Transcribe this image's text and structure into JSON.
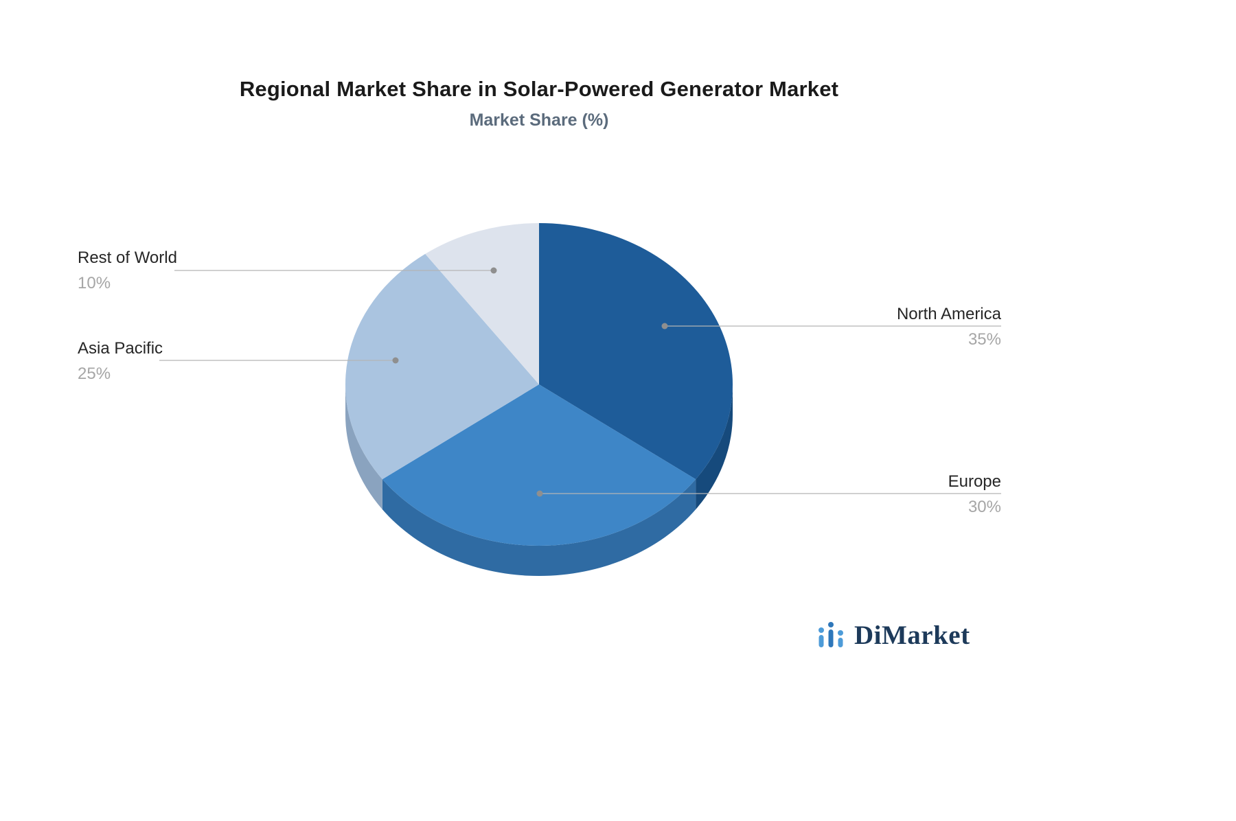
{
  "chart_data": {
    "type": "pie",
    "style": "3d",
    "title": "Regional Market Share in Solar-Powered Generator Market",
    "subtitle": "Market Share (%)",
    "unit": "%",
    "categories": [
      "North America",
      "Europe",
      "Asia Pacific",
      "Rest of World"
    ],
    "values": [
      35,
      30,
      25,
      10
    ],
    "slices": [
      {
        "label": "North America",
        "value": 35,
        "pct_label": "35%",
        "color": "#1e5c99",
        "side_color": "#164a7c"
      },
      {
        "label": "Europe",
        "value": 30,
        "pct_label": "30%",
        "color": "#3e86c7",
        "side_color": "#2f6ba3"
      },
      {
        "label": "Asia Pacific",
        "value": 25,
        "pct_label": "25%",
        "color": "#aac4e0",
        "side_color": "#8aa3bf"
      },
      {
        "label": "Rest of World",
        "value": 10,
        "pct_label": "10%",
        "color": "#dde3ed",
        "side_color": "#b6c1d0"
      }
    ],
    "start_angle_deg": 0,
    "direction": "clockwise",
    "legend_position": "none",
    "callout_line_color": "#b5b5b5",
    "callout_dot_color": "#8f8f8f",
    "label_color": "#262626",
    "value_color": "#a6a6a6"
  },
  "branding": {
    "logo_text": "DiMarket",
    "logo_icon": "bar-chart-dots-icon",
    "logo_color": "#1d3a5a",
    "icon_color": "#2e77ba"
  }
}
